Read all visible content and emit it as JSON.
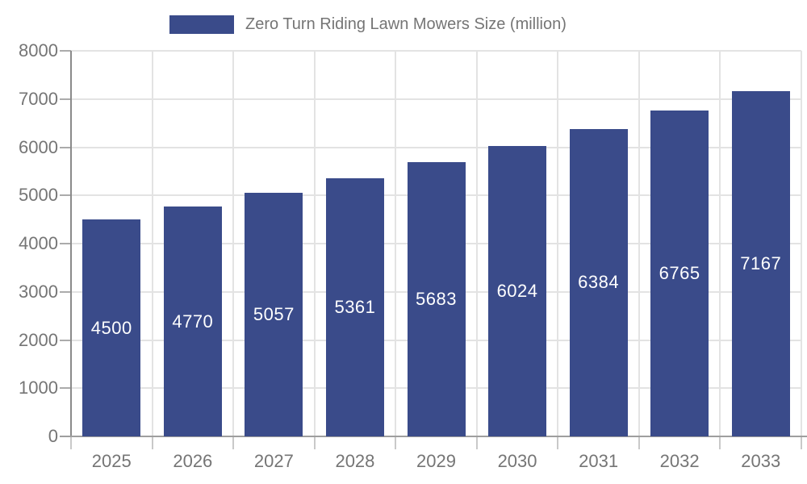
{
  "legend": {
    "label": "Zero Turn Riding Lawn Mowers Size (million)"
  },
  "chart_data": {
    "type": "bar",
    "title": "Zero Turn Riding Lawn Mowers Size (million)",
    "categories": [
      "2025",
      "2026",
      "2027",
      "2028",
      "2029",
      "2030",
      "2031",
      "2032",
      "2033"
    ],
    "series": [
      {
        "name": "Zero Turn Riding Lawn Mowers Size (million)",
        "values": [
          4500,
          4770,
          5057,
          5361,
          5683,
          6024,
          6384,
          6765,
          7167
        ]
      }
    ],
    "value_labels_shown": true,
    "xlabel": "",
    "ylabel": "",
    "ylim": [
      0,
      8000
    ],
    "ytick_step": 1000,
    "yticks": [
      0,
      1000,
      2000,
      3000,
      4000,
      5000,
      6000,
      7000,
      8000
    ],
    "grid": true,
    "legend_position": "top",
    "colors": {
      "bar": "#3A4B8A",
      "grid": "#E3E3E3",
      "axis_y_line": "#8A8A8A",
      "axis_x_line": "#9E9E9E",
      "y_tick": "#ABABAB",
      "x_tick": "#C9C9C9",
      "axis_label": "#757575",
      "value_label": "#FFFFFF",
      "background": "#FFFFFF"
    }
  }
}
